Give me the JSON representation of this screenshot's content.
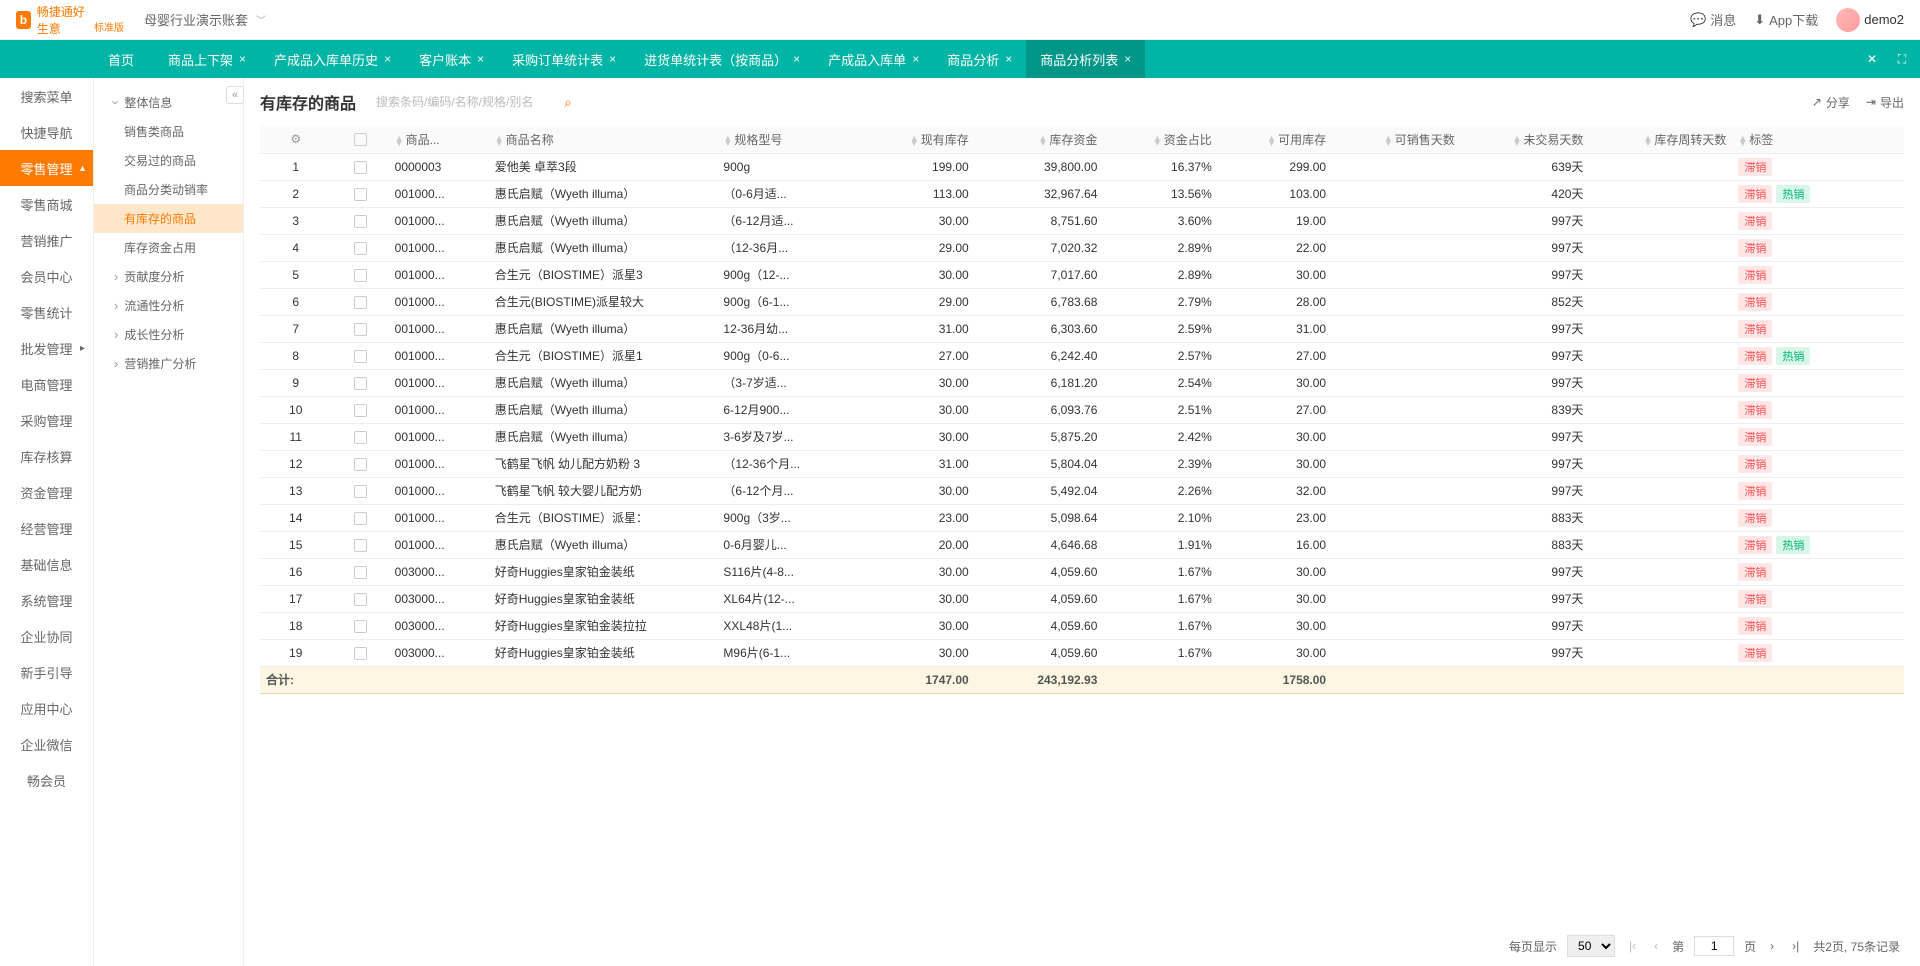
{
  "header": {
    "brand_text": "畅捷通好生意",
    "version": "标准版",
    "account": "母婴行业演示账套",
    "msg": "消息",
    "download": "App下载",
    "user": "demo2"
  },
  "tabs": {
    "home": "首页",
    "list": [
      {
        "label": "商品上下架"
      },
      {
        "label": "产成品入库单历史"
      },
      {
        "label": "客户账本"
      },
      {
        "label": "采购订单统计表"
      },
      {
        "label": "进货单统计表（按商品）"
      },
      {
        "label": "产成品入库单"
      },
      {
        "label": "商品分析"
      },
      {
        "label": "商品分析列表",
        "active": true
      }
    ]
  },
  "sidebar": [
    {
      "label": "搜索菜单"
    },
    {
      "label": "快捷导航"
    },
    {
      "label": "零售管理",
      "active": true,
      "expanded": true
    },
    {
      "label": "零售商城",
      "child": true
    },
    {
      "label": "营销推广",
      "child": true
    },
    {
      "label": "会员中心",
      "child": true
    },
    {
      "label": "零售统计",
      "child": true
    },
    {
      "label": "批发管理",
      "caret": true
    },
    {
      "label": "电商管理"
    },
    {
      "label": "采购管理"
    },
    {
      "label": "库存核算"
    },
    {
      "label": "资金管理"
    },
    {
      "label": "经营管理"
    },
    {
      "label": "基础信息"
    },
    {
      "label": "系统管理"
    },
    {
      "label": "企业协同"
    },
    {
      "label": "新手引导"
    },
    {
      "label": "应用中心"
    },
    {
      "label": "企业微信"
    },
    {
      "label": "畅会员"
    }
  ],
  "tree": [
    {
      "label": "整体信息",
      "type": "parent",
      "expanded": true
    },
    {
      "label": "销售类商品",
      "type": "leaf"
    },
    {
      "label": "交易过的商品",
      "type": "leaf"
    },
    {
      "label": "商品分类动销率",
      "type": "leaf"
    },
    {
      "label": "有库存的商品",
      "type": "leaf",
      "active": true
    },
    {
      "label": "库存资金占用",
      "type": "leaf"
    },
    {
      "label": "贡献度分析",
      "type": "parent",
      "expanded": false
    },
    {
      "label": "流通性分析",
      "type": "parent",
      "expanded": false
    },
    {
      "label": "成长性分析",
      "type": "parent",
      "expanded": false
    },
    {
      "label": "营销推广分析",
      "type": "parent",
      "expanded": false
    }
  ],
  "content": {
    "title": "有库存的商品",
    "search_placeholder": "搜索条码/编码/名称/规格/别名",
    "share": "分享",
    "export": "导出"
  },
  "columns": [
    "",
    "",
    "商品...",
    "商品名称",
    "规格型号",
    "现有库存",
    "库存资金",
    "资金占比",
    "可用库存",
    "可销售天数",
    "未交易天数",
    "库存周转天数",
    "标签"
  ],
  "rows": [
    {
      "idx": 1,
      "code": "0000003",
      "name": "爱他美 卓萃3段",
      "spec": "900g",
      "stock": "199.00",
      "fund": "39,800.00",
      "ratio": "16.37%",
      "avail": "299.00",
      "sale_days": "",
      "no_trade": "639天",
      "turn": "",
      "tags": [
        "滞销"
      ]
    },
    {
      "idx": 2,
      "code": "001000...",
      "name": "惠氏启赋（Wyeth illuma）",
      "spec": "（0-6月适...",
      "stock": "113.00",
      "fund": "32,967.64",
      "ratio": "13.56%",
      "avail": "103.00",
      "sale_days": "",
      "no_trade": "420天",
      "turn": "",
      "tags": [
        "滞销",
        "热销"
      ]
    },
    {
      "idx": 3,
      "code": "001000...",
      "name": "惠氏启赋（Wyeth illuma）",
      "spec": "（6-12月适...",
      "stock": "30.00",
      "fund": "8,751.60",
      "ratio": "3.60%",
      "avail": "19.00",
      "sale_days": "",
      "no_trade": "997天",
      "turn": "",
      "tags": [
        "滞销"
      ]
    },
    {
      "idx": 4,
      "code": "001000...",
      "name": "惠氏启赋（Wyeth illuma）",
      "spec": "（12-36月...",
      "stock": "29.00",
      "fund": "7,020.32",
      "ratio": "2.89%",
      "avail": "22.00",
      "sale_days": "",
      "no_trade": "997天",
      "turn": "",
      "tags": [
        "滞销"
      ]
    },
    {
      "idx": 5,
      "code": "001000...",
      "name": "合生元（BIOSTIME）派星3",
      "spec": "900g（12-...",
      "stock": "30.00",
      "fund": "7,017.60",
      "ratio": "2.89%",
      "avail": "30.00",
      "sale_days": "",
      "no_trade": "997天",
      "turn": "",
      "tags": [
        "滞销"
      ]
    },
    {
      "idx": 6,
      "code": "001000...",
      "name": "合生元(BIOSTIME)派星较大",
      "spec": "900g（6-1...",
      "stock": "29.00",
      "fund": "6,783.68",
      "ratio": "2.79%",
      "avail": "28.00",
      "sale_days": "",
      "no_trade": "852天",
      "turn": "",
      "tags": [
        "滞销"
      ]
    },
    {
      "idx": 7,
      "code": "001000...",
      "name": "惠氏启赋（Wyeth illuma）",
      "spec": "12-36月幼...",
      "stock": "31.00",
      "fund": "6,303.60",
      "ratio": "2.59%",
      "avail": "31.00",
      "sale_days": "",
      "no_trade": "997天",
      "turn": "",
      "tags": [
        "滞销"
      ]
    },
    {
      "idx": 8,
      "code": "001000...",
      "name": "合生元（BIOSTIME）派星1",
      "spec": "900g（0-6...",
      "stock": "27.00",
      "fund": "6,242.40",
      "ratio": "2.57%",
      "avail": "27.00",
      "sale_days": "",
      "no_trade": "997天",
      "turn": "",
      "tags": [
        "滞销",
        "热销"
      ]
    },
    {
      "idx": 9,
      "code": "001000...",
      "name": "惠氏启赋（Wyeth illuma）",
      "spec": "（3-7岁适...",
      "stock": "30.00",
      "fund": "6,181.20",
      "ratio": "2.54%",
      "avail": "30.00",
      "sale_days": "",
      "no_trade": "997天",
      "turn": "",
      "tags": [
        "滞销"
      ]
    },
    {
      "idx": 10,
      "code": "001000...",
      "name": "惠氏启赋（Wyeth illuma）",
      "spec": "6-12月900...",
      "stock": "30.00",
      "fund": "6,093.76",
      "ratio": "2.51%",
      "avail": "27.00",
      "sale_days": "",
      "no_trade": "839天",
      "turn": "",
      "tags": [
        "滞销"
      ]
    },
    {
      "idx": 11,
      "code": "001000...",
      "name": "惠氏启赋（Wyeth illuma）",
      "spec": "3-6岁及7岁...",
      "stock": "30.00",
      "fund": "5,875.20",
      "ratio": "2.42%",
      "avail": "30.00",
      "sale_days": "",
      "no_trade": "997天",
      "turn": "",
      "tags": [
        "滞销"
      ]
    },
    {
      "idx": 12,
      "code": "001000...",
      "name": "飞鹤星飞帆 幼儿配方奶粉 3",
      "spec": "（12-36个月...",
      "stock": "31.00",
      "fund": "5,804.04",
      "ratio": "2.39%",
      "avail": "30.00",
      "sale_days": "",
      "no_trade": "997天",
      "turn": "",
      "tags": [
        "滞销"
      ]
    },
    {
      "idx": 13,
      "code": "001000...",
      "name": "飞鹤星飞帆 较大婴儿配方奶",
      "spec": "（6-12个月...",
      "stock": "30.00",
      "fund": "5,492.04",
      "ratio": "2.26%",
      "avail": "32.00",
      "sale_days": "",
      "no_trade": "997天",
      "turn": "",
      "tags": [
        "滞销"
      ]
    },
    {
      "idx": 14,
      "code": "001000...",
      "name": "合生元（BIOSTIME）派星：",
      "spec": "900g（3岁...",
      "stock": "23.00",
      "fund": "5,098.64",
      "ratio": "2.10%",
      "avail": "23.00",
      "sale_days": "",
      "no_trade": "883天",
      "turn": "",
      "tags": [
        "滞销"
      ]
    },
    {
      "idx": 15,
      "code": "001000...",
      "name": "惠氏启赋（Wyeth illuma）",
      "spec": "0-6月婴儿...",
      "stock": "20.00",
      "fund": "4,646.68",
      "ratio": "1.91%",
      "avail": "16.00",
      "sale_days": "",
      "no_trade": "883天",
      "turn": "",
      "tags": [
        "滞销",
        "热销"
      ]
    },
    {
      "idx": 16,
      "code": "003000...",
      "name": "好奇Huggies皇家铂金装纸",
      "spec": "S116片(4-8...",
      "stock": "30.00",
      "fund": "4,059.60",
      "ratio": "1.67%",
      "avail": "30.00",
      "sale_days": "",
      "no_trade": "997天",
      "turn": "",
      "tags": [
        "滞销"
      ]
    },
    {
      "idx": 17,
      "code": "003000...",
      "name": "好奇Huggies皇家铂金装纸",
      "spec": "XL64片(12-...",
      "stock": "30.00",
      "fund": "4,059.60",
      "ratio": "1.67%",
      "avail": "30.00",
      "sale_days": "",
      "no_trade": "997天",
      "turn": "",
      "tags": [
        "滞销"
      ]
    },
    {
      "idx": 18,
      "code": "003000...",
      "name": "好奇Huggies皇家铂金装拉拉",
      "spec": "XXL48片(1...",
      "stock": "30.00",
      "fund": "4,059.60",
      "ratio": "1.67%",
      "avail": "30.00",
      "sale_days": "",
      "no_trade": "997天",
      "turn": "",
      "tags": [
        "滞销"
      ]
    },
    {
      "idx": 19,
      "code": "003000...",
      "name": "好奇Huggies皇家铂金装纸",
      "spec": "M96片(6-1...",
      "stock": "30.00",
      "fund": "4,059.60",
      "ratio": "1.67%",
      "avail": "30.00",
      "sale_days": "",
      "no_trade": "997天",
      "turn": "",
      "tags": [
        "滞销"
      ]
    }
  ],
  "totals": {
    "label": "合计:",
    "stock": "1747.00",
    "fund": "243,192.93",
    "avail": "1758.00"
  },
  "pager": {
    "per_page_label": "每页显示",
    "size": "50",
    "page_label_1": "第",
    "page": "1",
    "page_label_2": "页",
    "summary": "共2页, 75条记录"
  }
}
